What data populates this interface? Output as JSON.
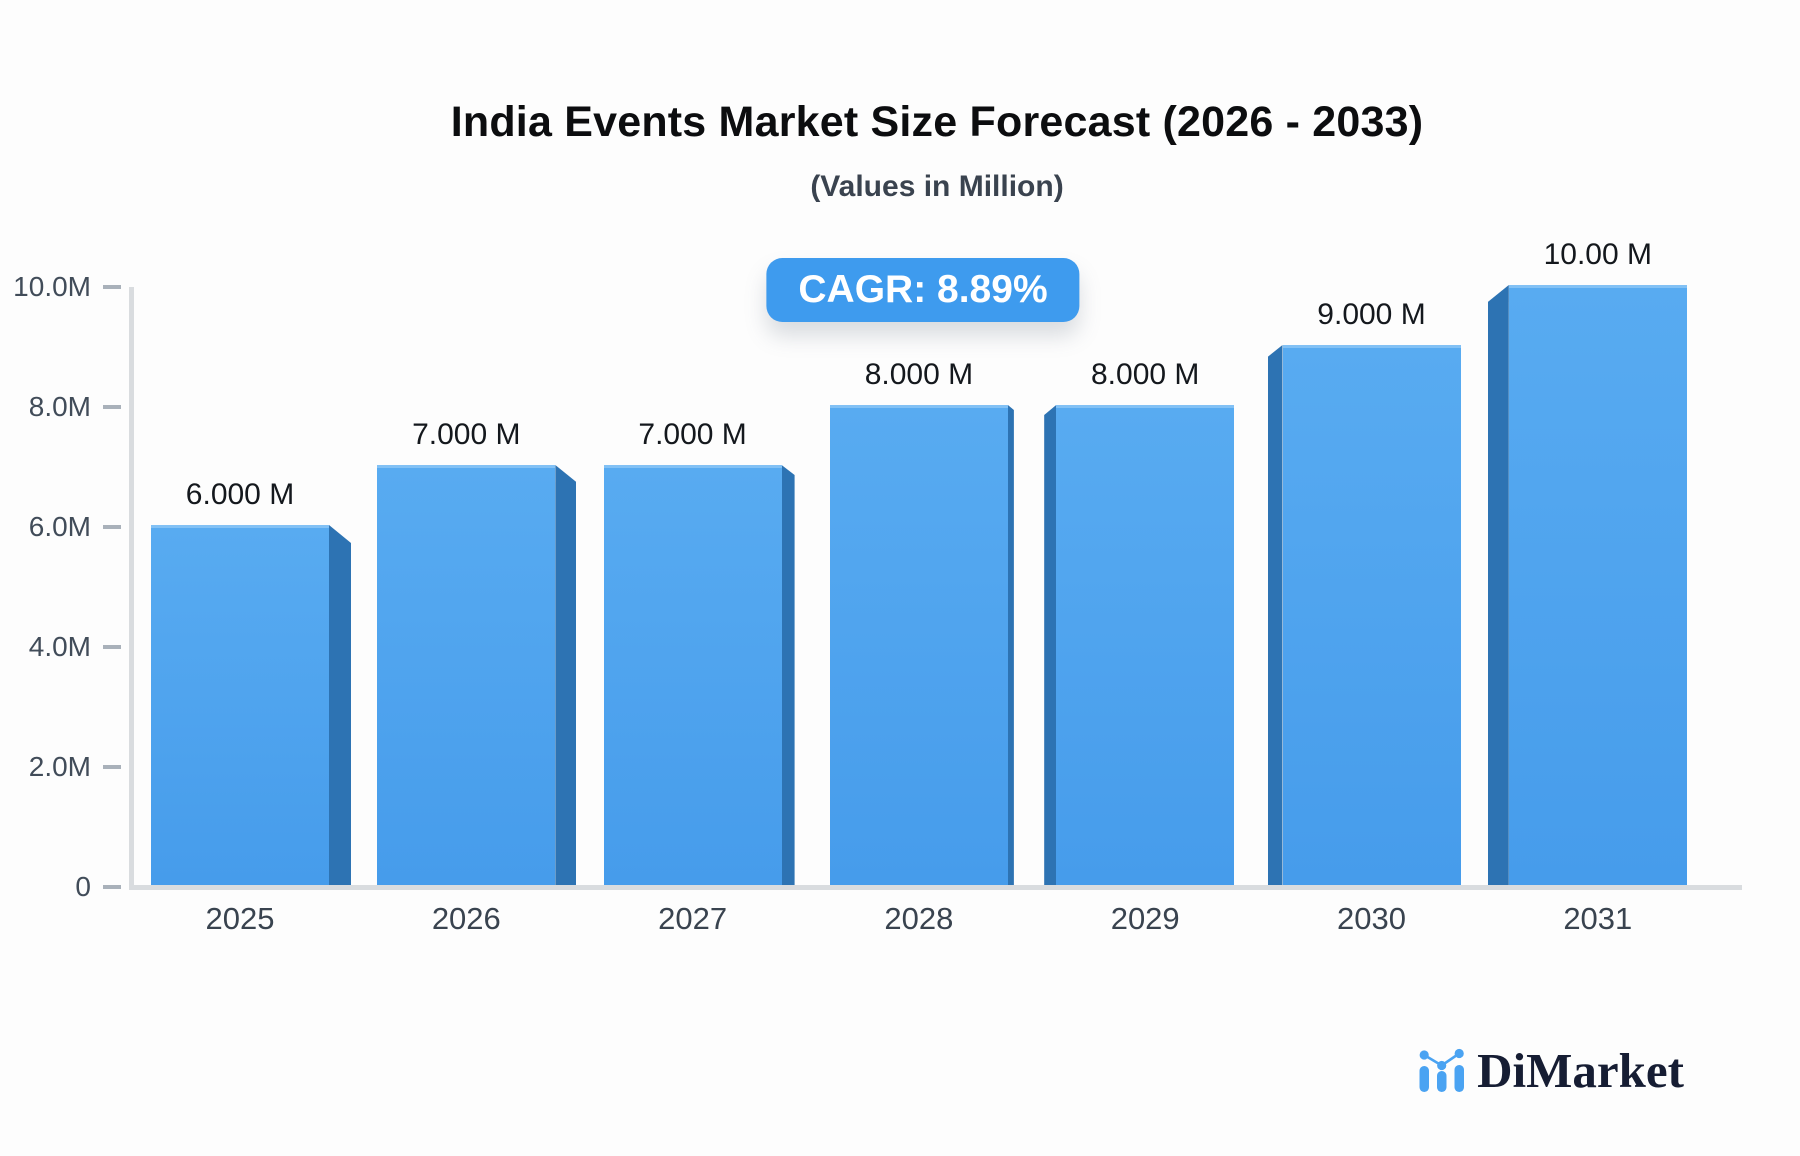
{
  "header": {
    "title": "India Events Market Size Forecast (2026 - 2033)",
    "subtitle": "(Values in Million)"
  },
  "badge": {
    "label": "CAGR: 8.89%",
    "bg_color": "#3e9bee"
  },
  "chart_data": {
    "type": "bar",
    "title": "India Events Market Size Forecast (2026 - 2033)",
    "subtitle": "(Values in Million)",
    "unit": "Million",
    "categories": [
      "2025",
      "2026",
      "2027",
      "2028",
      "2029",
      "2030",
      "2031"
    ],
    "values": [
      6,
      7,
      7,
      8,
      8,
      9,
      10
    ],
    "bar_labels": [
      "6.000 M",
      "7.000 M",
      "7.000 M",
      "8.000 M",
      "8.000 M",
      "9.000 M",
      "10.00 M"
    ],
    "ylim": [
      0,
      10
    ],
    "y_ticks": [
      {
        "value": 0,
        "label": "0"
      },
      {
        "value": 2,
        "label": "2.0M"
      },
      {
        "value": 4,
        "label": "4.0M"
      },
      {
        "value": 6,
        "label": "6.0M"
      },
      {
        "value": 8,
        "label": "8.0M"
      },
      {
        "value": 10,
        "label": "10.0M"
      }
    ],
    "grid": false,
    "legend": false,
    "style_3d": true,
    "colors": {
      "bar_front": "#469ceb",
      "bar_front_light": "#58abf1",
      "bar_side": "#2d73b3",
      "bar_top_edge": "#82c1f5",
      "axis_line": "#d9dcdf",
      "tick_mark": "#a9b1ba"
    }
  },
  "footer": {
    "logo_text": "DiMarket",
    "logo_icon": "bar-chart-trend-icon",
    "logo_text_color": "#161d33",
    "logo_icon_color": "#4aa3f2"
  }
}
